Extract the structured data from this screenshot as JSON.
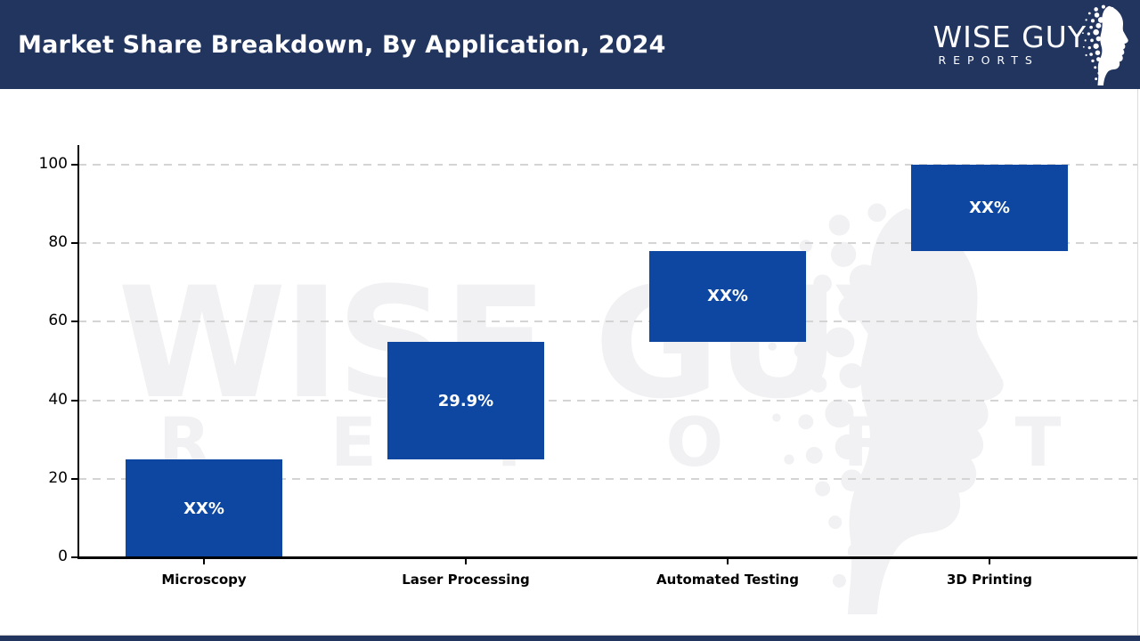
{
  "header": {
    "title": "Market Share Breakdown, By Application, 2024",
    "bg_color": "#22355f",
    "logo": {
      "line1": "WISE GUY",
      "line2": "REPORTS"
    }
  },
  "watermark": {
    "line1": "WISE GUY",
    "line2": "R E P O R T S"
  },
  "chart_data": {
    "type": "bar",
    "variant": "floating-segment-breakdown",
    "title": "Market Share Breakdown, By Application, 2024",
    "categories": [
      "Microscopy",
      "Laser Processing",
      "Automated Testing",
      "3D Printing"
    ],
    "segments": [
      {
        "category": "Microscopy",
        "start": 0,
        "end": 24.9,
        "label": "XX%"
      },
      {
        "category": "Laser Processing",
        "start": 24.9,
        "end": 54.8,
        "label": "29.9%"
      },
      {
        "category": "Automated Testing",
        "start": 54.8,
        "end": 78.1,
        "label": "XX%"
      },
      {
        "category": "3D Printing",
        "start": 78.1,
        "end": 100.0,
        "label": "XX%"
      }
    ],
    "yticks": [
      0,
      20,
      40,
      60,
      80,
      100
    ],
    "ylim": [
      0,
      105
    ],
    "xlabel": "",
    "ylabel": "",
    "grid": "horizontal-dashed",
    "legend": "none",
    "bar_color": "#0d47a1",
    "bar_label_color": "#ffffff",
    "axis_color": "#000000",
    "gridline_color": "#d4d4d4"
  }
}
